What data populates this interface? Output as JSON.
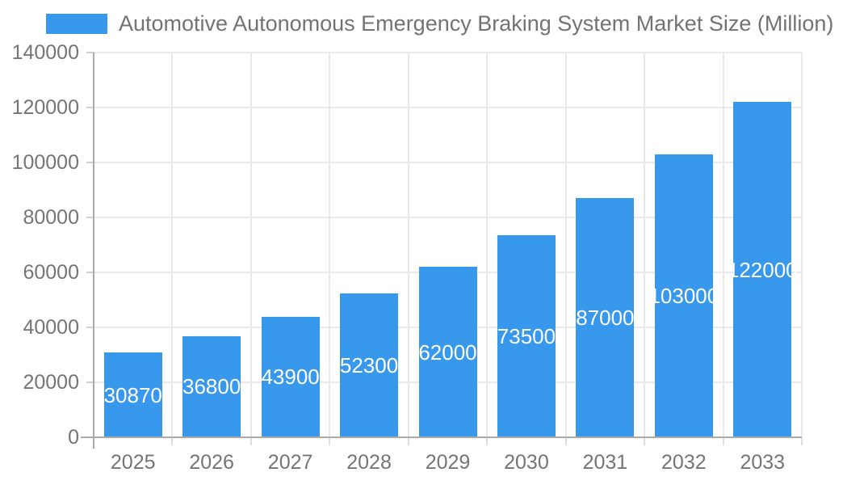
{
  "chart_data": {
    "type": "bar",
    "title": "Automotive Autonomous Emergency Braking System Market Size (Million)",
    "categories": [
      "2025",
      "2026",
      "2027",
      "2028",
      "2029",
      "2030",
      "2031",
      "2032",
      "2033"
    ],
    "values": [
      30870,
      36800,
      43900,
      52300,
      62000,
      73500,
      87000,
      103000,
      122000
    ],
    "xlabel": "",
    "ylabel": "",
    "ylim": [
      0,
      140000
    ],
    "ytick_step": 20000,
    "ytick_labels": [
      "0",
      "20000",
      "40000",
      "60000",
      "80000",
      "100000",
      "120000",
      "140000"
    ],
    "grid": true,
    "legend_position": "top-left",
    "bar_color": "#3898ec",
    "bar_label_color": "#ffffff",
    "axis_text_color": "#757575",
    "title_text_color": "#737373",
    "gridline_color": "#e9e9e9",
    "axis_line_color": "#ababab"
  }
}
